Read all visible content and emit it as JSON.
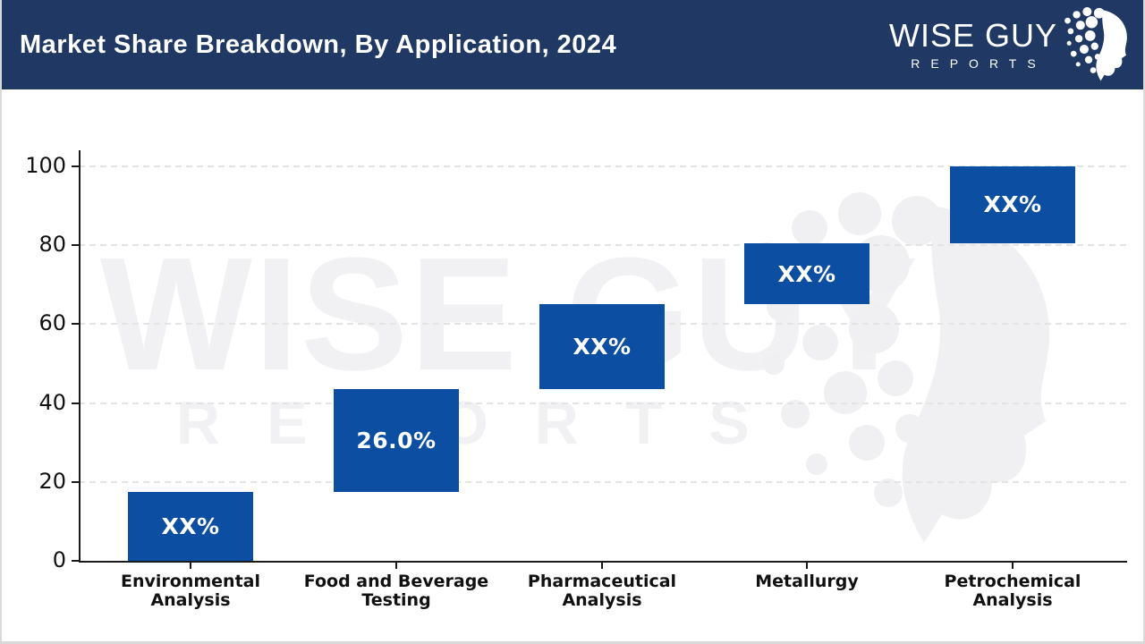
{
  "header": {
    "title": "Market Share Breakdown, By Application, 2024"
  },
  "logo": {
    "line1": "WISE GUY",
    "line2": "REPORTS"
  },
  "watermark": {
    "line1": "WISE GUY",
    "line2": "REPORTS"
  },
  "colors": {
    "header_bg": "#1F3864",
    "bar_blue": "#0B4EA2",
    "bar_label": "#ffffff",
    "axis": "#1a1a1a",
    "gridline": "#e4e4e4",
    "watermark": "#f1f1f3",
    "frame_border": "#d9d9d9"
  },
  "chart_data": {
    "type": "bar",
    "subtype": "waterfall",
    "title": "Market Share Breakdown, By Application, 2024",
    "xlabel": "",
    "ylabel": "",
    "ylim": [
      0,
      105
    ],
    "y_ticks": [
      0,
      20,
      40,
      60,
      80,
      100
    ],
    "grid": "horizontal-dashed",
    "legend": "none",
    "categories": [
      "Environmental\nAnalysis",
      "Food and Beverage\nTesting",
      "Pharmaceutical\nAnalysis",
      "Metallurgy",
      "Petrochemical\nAnalysis"
    ],
    "segments": [
      {
        "category": "Environmental Analysis",
        "start": 0,
        "end": 17.5,
        "value": 17.5,
        "label": "XX%"
      },
      {
        "category": "Food and Beverage Testing",
        "start": 17.5,
        "end": 43.5,
        "value": 26.0,
        "label": "26.0%"
      },
      {
        "category": "Pharmaceutical Analysis",
        "start": 43.5,
        "end": 65.0,
        "value": 21.5,
        "label": "XX%"
      },
      {
        "category": "Metallurgy",
        "start": 65.0,
        "end": 80.5,
        "value": 15.5,
        "label": "XX%"
      },
      {
        "category": "Petrochemical Analysis",
        "start": 80.5,
        "end": 100.0,
        "value": 19.5,
        "label": "XX%"
      }
    ]
  }
}
